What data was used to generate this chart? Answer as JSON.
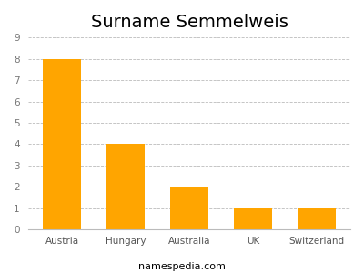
{
  "title": "Surname Semmelweis",
  "categories": [
    "Austria",
    "Hungary",
    "Australia",
    "UK",
    "Switzerland"
  ],
  "values": [
    8,
    4,
    2,
    1,
    1
  ],
  "bar_color": "#FFA500",
  "ylim": [
    0,
    9
  ],
  "yticks": [
    0,
    1,
    2,
    3,
    4,
    5,
    6,
    7,
    8,
    9
  ],
  "title_fontsize": 14,
  "tick_fontsize": 7.5,
  "footer_text": "namespedia.com",
  "footer_fontsize": 8,
  "background_color": "#ffffff",
  "grid_color": "#bbbbbb",
  "bar_width": 0.6,
  "bar_edge_color": "#E08000"
}
